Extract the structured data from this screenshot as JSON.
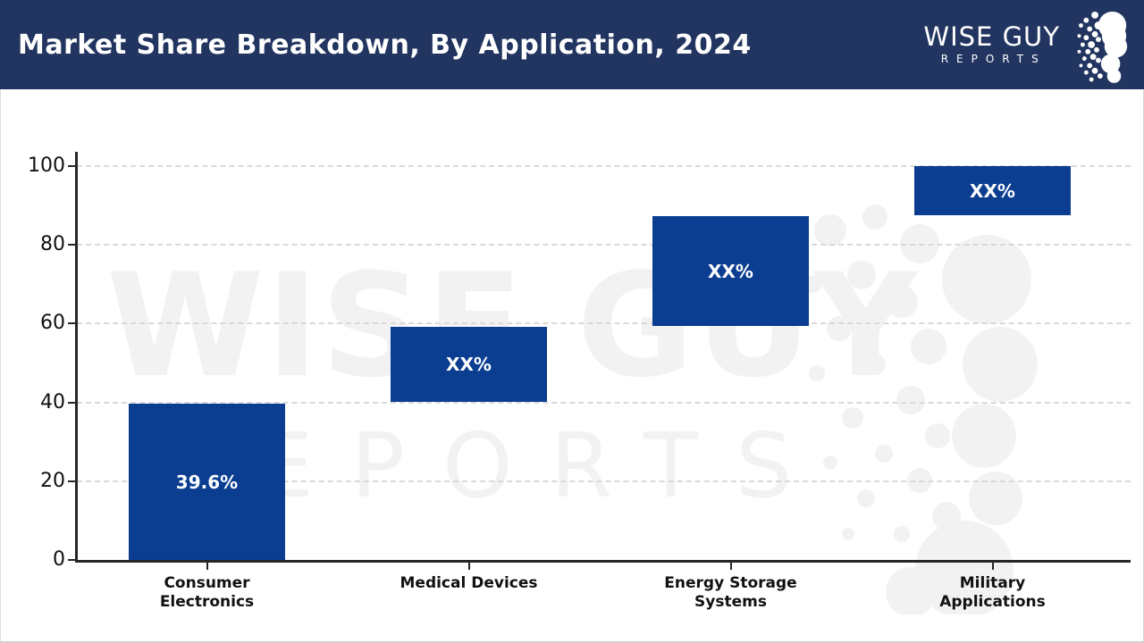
{
  "header": {
    "title": "Market Share Breakdown, By Application, 2024",
    "logo": {
      "line1": "WISE GUY",
      "line2": "REPORTS"
    }
  },
  "watermark": {
    "line1": "WISE GUY",
    "line2": "REPORTS"
  },
  "chart_data": {
    "type": "bar",
    "variant": "floating-segment-waterfall",
    "title": "Market Share Breakdown, By Application, 2024",
    "categories": [
      "Consumer Electronics",
      "Medical Devices",
      "Energy Storage Systems",
      "Military Applications"
    ],
    "x_tick_lines": [
      [
        "Consumer",
        "Electronics"
      ],
      [
        "Medical Devices"
      ],
      [
        "Energy Storage",
        "Systems"
      ],
      [
        "Military",
        "Applications"
      ]
    ],
    "segments": [
      {
        "category": "Consumer Electronics",
        "start": 0,
        "end": 39.6,
        "label": "39.6%"
      },
      {
        "category": "Medical Devices",
        "start": 40.1,
        "end": 59.2,
        "label": "XX%"
      },
      {
        "category": "Energy Storage Systems",
        "start": 59.4,
        "end": 87.3,
        "label": "XX%"
      },
      {
        "category": "Military Applications",
        "start": 87.5,
        "end": 100,
        "label": "XX%"
      }
    ],
    "ylim": [
      0,
      100
    ],
    "yticks": [
      0,
      20,
      40,
      60,
      80,
      100
    ],
    "xlabel": "",
    "ylabel": "",
    "grid": true,
    "gridline_style": "dashed",
    "legend": false,
    "colors": {
      "bar": "#0b3d91",
      "bar_label": "#ffffff",
      "header_bg": "#223560",
      "gridline": "#d9d9d9",
      "axis": "#262626",
      "tick_label": "#111111",
      "watermark": "#f2f2f2"
    }
  }
}
